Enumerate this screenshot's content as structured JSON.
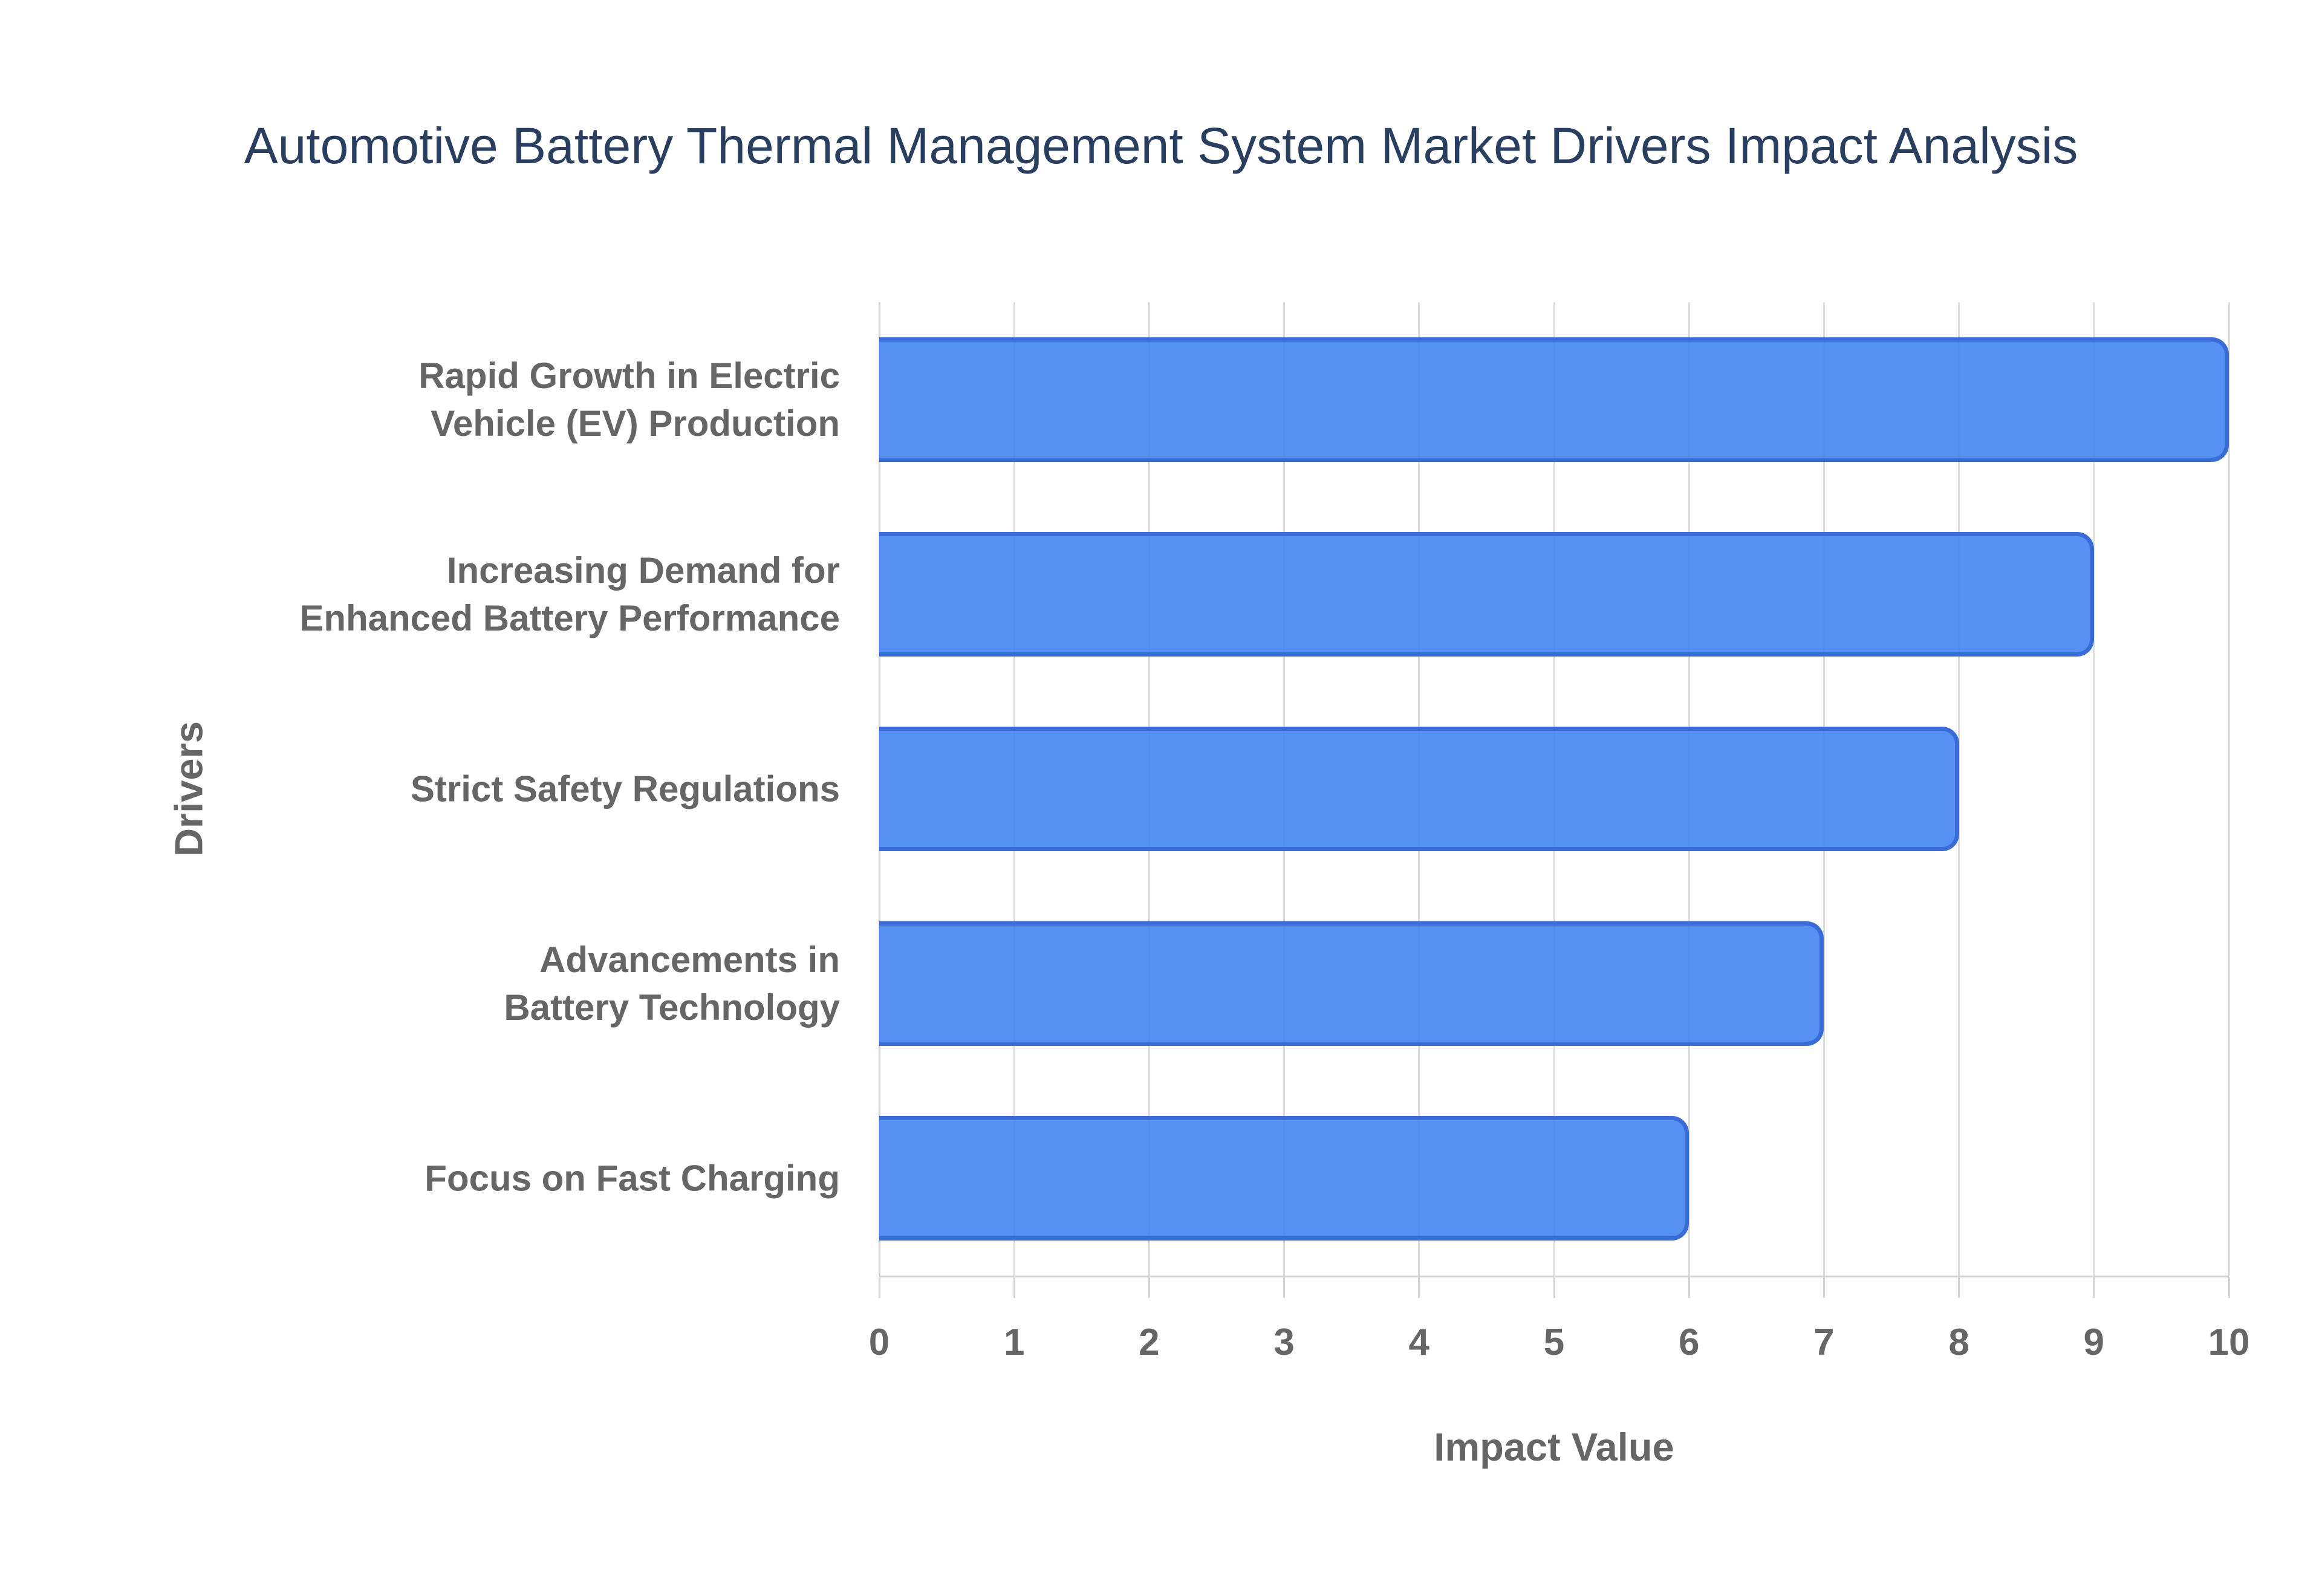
{
  "chart_data": {
    "type": "bar",
    "orientation": "horizontal",
    "title": "Automotive Battery Thermal Management System Market Drivers Impact Analysis",
    "xlabel": "Impact Value",
    "ylabel": "Drivers",
    "categories": [
      "Rapid Growth in Electric Vehicle (EV) Production",
      "Increasing Demand for Enhanced Battery Performance",
      "Strict Safety Regulations",
      "Advancements in Battery Technology",
      "Focus on Fast Charging"
    ],
    "values": [
      10,
      9,
      8,
      7,
      6
    ],
    "xlim": [
      0,
      10
    ],
    "xticks": [
      0,
      1,
      2,
      3,
      4,
      5,
      6,
      7,
      8,
      9,
      10
    ],
    "grid": true,
    "legend": "none",
    "bar_band_fraction": 0.64,
    "colors": {
      "bar_fill": "#3E82F1",
      "bar_fill_opacity": "0.88",
      "bar_border": "#3A6CD8",
      "title_text": "#2A3F5F",
      "axis_text": "#666666",
      "gridline": "#DDDDDD",
      "axis_line": "#D3D3D3",
      "background": "#FFFFFF"
    }
  }
}
